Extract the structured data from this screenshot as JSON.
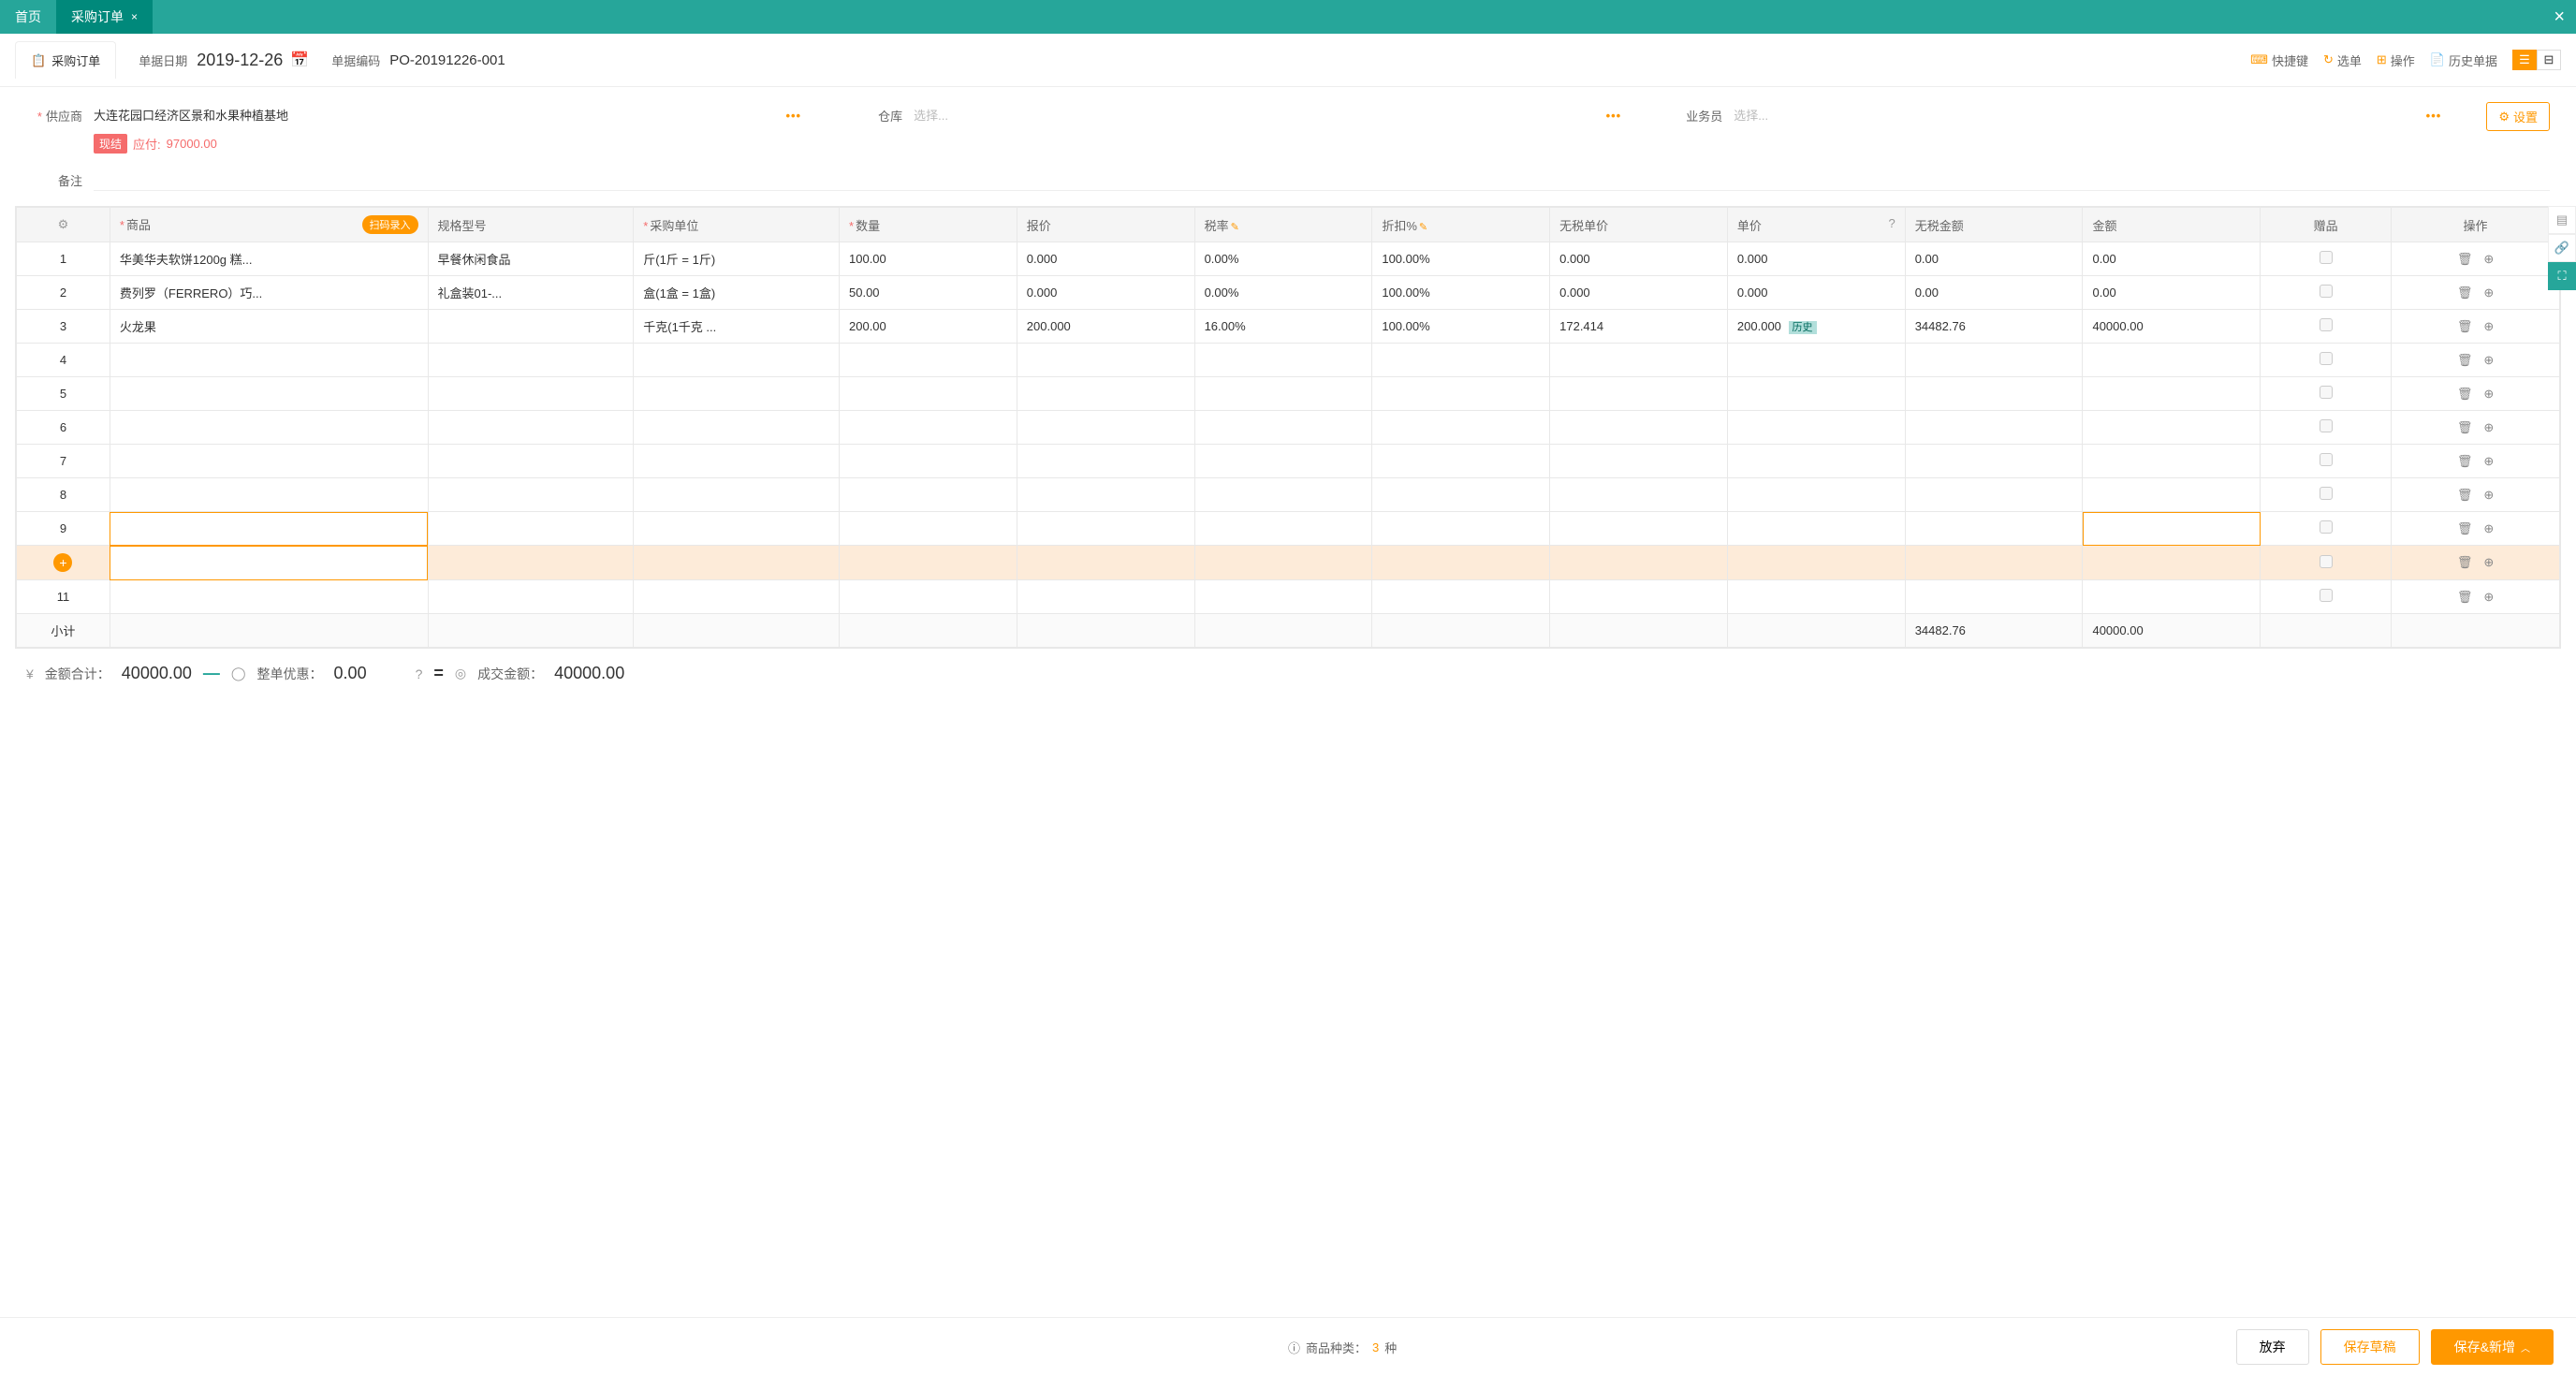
{
  "tabs": {
    "home": "首页",
    "active": "采购订单"
  },
  "subtab": "采购订单",
  "header": {
    "date_label": "单据日期",
    "date_value": "2019-12-26",
    "code_label": "单据编码",
    "code_value": "PO-20191226-001"
  },
  "toolbar": {
    "shortcut": "快捷键",
    "select": "选单",
    "ops": "操作",
    "history": "历史单据"
  },
  "form": {
    "supplier_label": "供应商",
    "supplier_value": "大连花园口经济区景和水果种植基地",
    "badge": "现结",
    "payable_label": "应付:",
    "payable_value": "97000.00",
    "warehouse_label": "仓库",
    "warehouse_placeholder": "选择...",
    "clerk_label": "业务员",
    "clerk_placeholder": "选择...",
    "settings": "设置",
    "remark_label": "备注"
  },
  "table": {
    "columns": {
      "product": "商品",
      "scan": "扫码录入",
      "spec": "规格型号",
      "unit": "采购单位",
      "qty": "数量",
      "quote": "报价",
      "tax": "税率",
      "discount": "折扣%",
      "price_notax": "无税单价",
      "price": "单价",
      "amount_notax": "无税金额",
      "amount": "金额",
      "gift": "赠品",
      "op": "操作"
    },
    "rows": [
      {
        "idx": "1",
        "product": "华美华夫软饼1200g 糕...",
        "spec": "早餐休闲食品",
        "unit": "斤(1斤 = 1斤)",
        "qty": "100.00",
        "quote": "0.000",
        "tax": "0.00%",
        "discount": "100.00%",
        "price_notax": "0.000",
        "price": "0.000",
        "amount_notax": "0.00",
        "amount": "0.00",
        "hist": false
      },
      {
        "idx": "2",
        "product": "费列罗（FERRERO）巧...",
        "spec": "礼盒装01-...",
        "unit": "盒(1盒 = 1盒)",
        "qty": "50.00",
        "quote": "0.000",
        "tax": "0.00%",
        "discount": "100.00%",
        "price_notax": "0.000",
        "price": "0.000",
        "amount_notax": "0.00",
        "amount": "0.00",
        "hist": false
      },
      {
        "idx": "3",
        "product": "火龙果",
        "spec": "",
        "unit": "千克(1千克 ...",
        "qty": "200.00",
        "quote": "200.000",
        "tax": "16.00%",
        "discount": "100.00%",
        "price_notax": "172.414",
        "price": "200.000",
        "amount_notax": "34482.76",
        "amount": "40000.00",
        "hist": true
      }
    ],
    "history_tag": "历史",
    "empty_rows": [
      "4",
      "5",
      "6",
      "7",
      "8"
    ],
    "sel_row": "9",
    "highlight_row": true,
    "last_row": "11",
    "subtotal_label": "小计",
    "subtotal_notax": "34482.76",
    "subtotal_amount": "40000.00"
  },
  "totals": {
    "sum_label": "金额合计：",
    "sum_value": "40000.00",
    "discount_label": "整单优惠：",
    "discount_value": "0.00",
    "final_label": "成交金额：",
    "final_value": "40000.00"
  },
  "footer": {
    "kind_label": "商品种类：",
    "kind_count": "3",
    "kind_unit": "种",
    "discard": "放弃",
    "draft": "保存草稿",
    "save": "保存&新增"
  },
  "colors": {
    "teal": "#26a69a",
    "teal_dark": "#00897b",
    "orange": "#ff9800",
    "red": "#f56c6c",
    "border": "#e8e8e8",
    "highlight": "#fdebd9"
  }
}
